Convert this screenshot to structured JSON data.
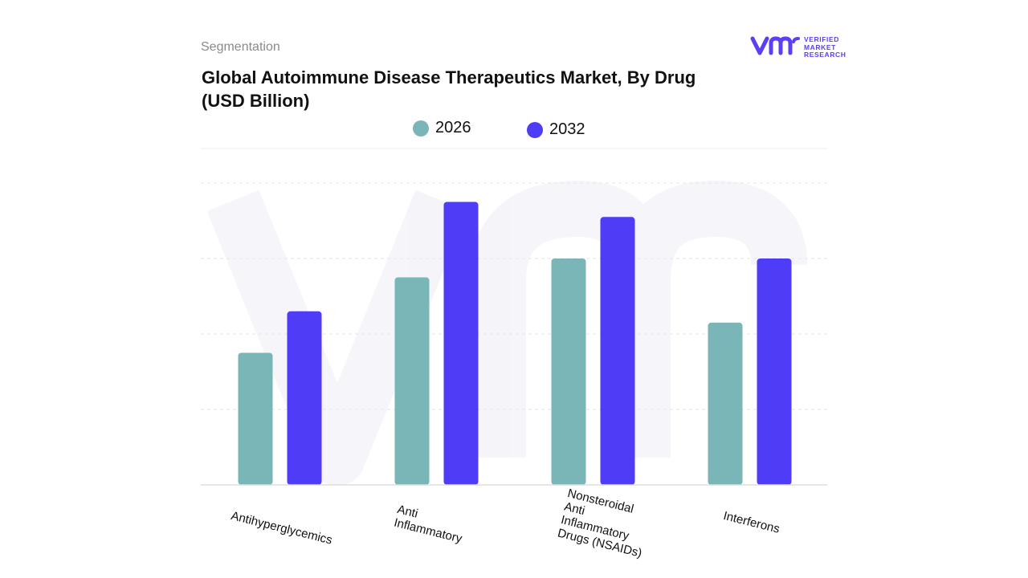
{
  "header": {
    "segmentation": "Segmentation",
    "title": "Global Autoimmune Disease Therapeutics Market, By Drug (USD Billion)"
  },
  "logo": {
    "line1": "VERIFIED",
    "line2": "MARKET",
    "line3": "RESEARCH",
    "colors": {
      "brand": "#5a3ff5"
    }
  },
  "chart_data": {
    "type": "bar",
    "categories": [
      "Antihyperglycemics",
      "Anti Inflammatory",
      "Nonsteroidal Anti Inflammatory Drugs (NSAIDs)",
      "Interferons"
    ],
    "series": [
      {
        "name": "2026",
        "color": "#7ab5b8",
        "values": [
          3.5,
          5.5,
          6.0,
          4.3
        ]
      },
      {
        "name": "2032",
        "color": "#4f3cf7",
        "values": [
          4.6,
          7.5,
          7.1,
          6.0
        ]
      }
    ],
    "ylim": [
      0,
      8
    ],
    "grid": true,
    "legend": "top-center",
    "xlabel": "",
    "ylabel": ""
  }
}
